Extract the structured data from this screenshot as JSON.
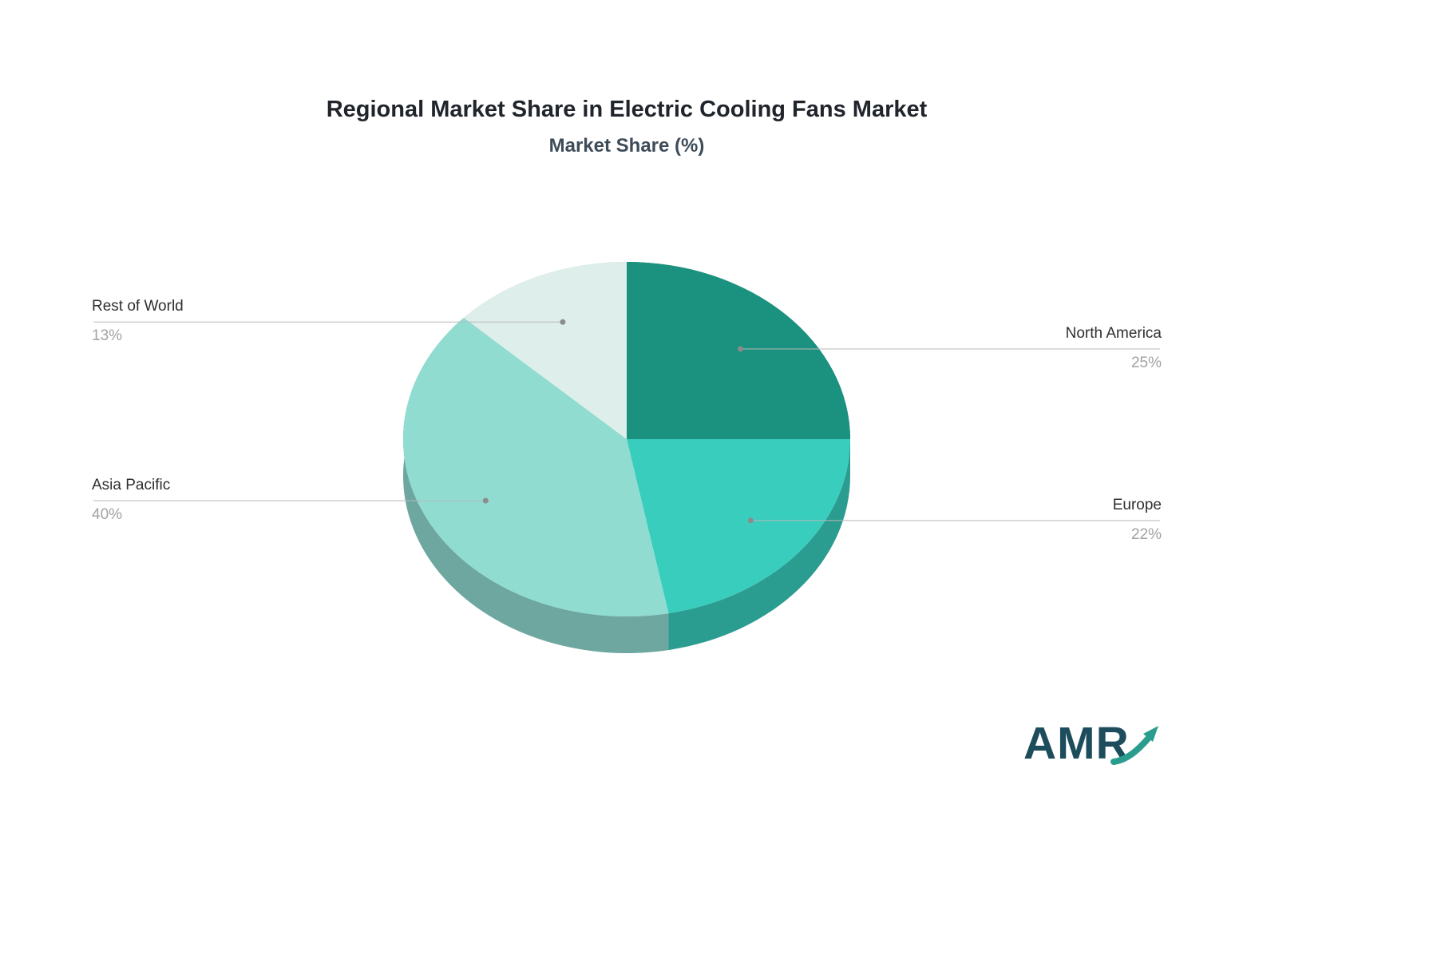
{
  "chart_data": {
    "type": "pie",
    "title": "Regional Market Share in Electric Cooling Fans Market",
    "subtitle": "Market Share (%)",
    "three_d": true,
    "start_angle_deg": -90,
    "direction": "clockwise",
    "legend_position": "none",
    "label_style": "callout-lines",
    "series": [
      {
        "name": "North America",
        "value": 25,
        "label": "25%",
        "color": "#1b9180"
      },
      {
        "name": "Europe",
        "value": 22,
        "label": "22%",
        "color": "#38cdbd"
      },
      {
        "name": "Asia Pacific",
        "value": 40,
        "label": "40%",
        "color": "#90dcd1"
      },
      {
        "name": "Rest of World",
        "value": 13,
        "label": "13%",
        "color": "#deeeea"
      }
    ],
    "callout": {
      "line_color": "#b9b9b9",
      "dot_color": "#8c8c8c",
      "name_color": "#2f2f2f",
      "value_color": "#a2a2a2"
    }
  },
  "logo": {
    "text": "AMR",
    "text_color": "#1d4d5c",
    "arrow_color": "#2a9d8f"
  }
}
